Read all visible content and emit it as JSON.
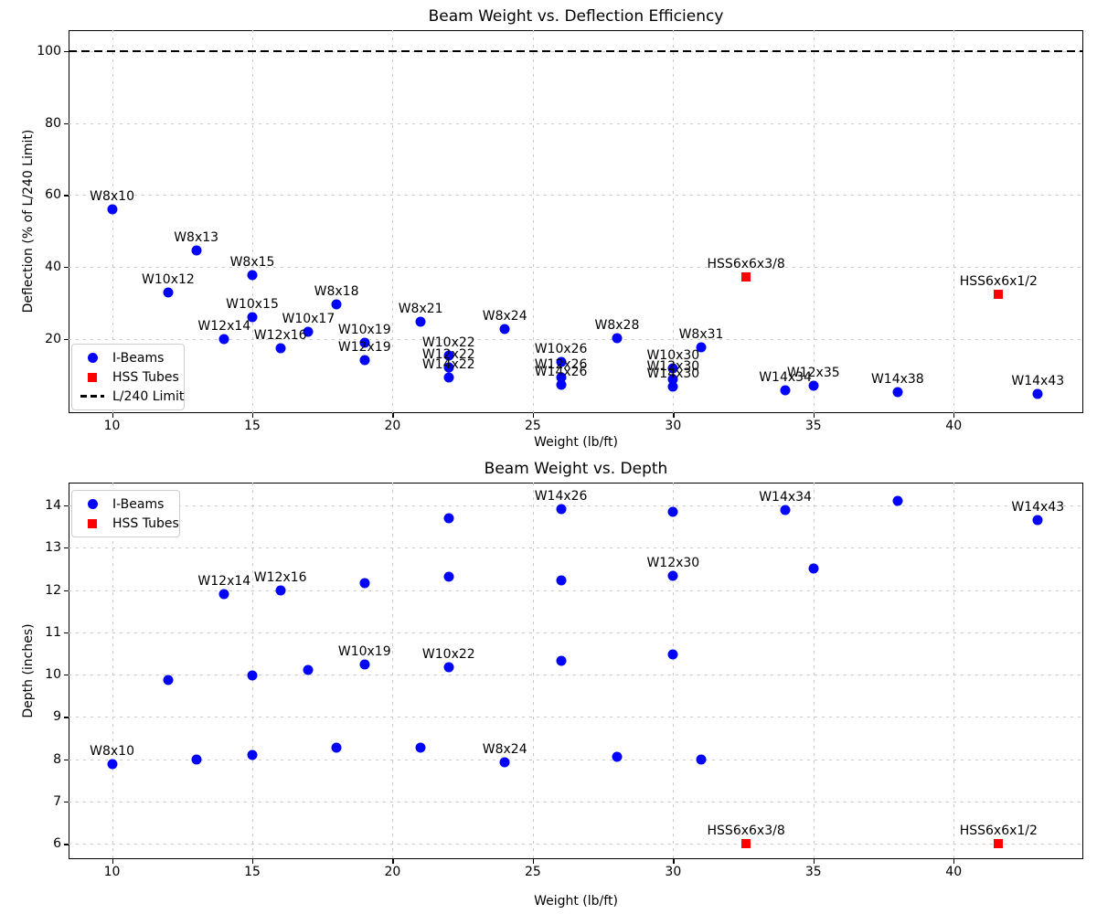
{
  "figure": {
    "background": "#ffffff",
    "ibeam_color": "#0000ff",
    "hss_color": "#ff0000",
    "grid_color": "#c9c9c9",
    "limit_color": "#000000"
  },
  "chart_data": [
    {
      "type": "scatter",
      "title": "Beam Weight vs. Deflection Efficiency",
      "xlabel": "Weight (lb/ft)",
      "ylabel": "Deflection (% of L/240 Limit)",
      "xlim": [
        8.45,
        44.62
      ],
      "ylim": [
        -0.6,
        105.8
      ],
      "x_ticks": [
        10,
        15,
        20,
        25,
        30,
        35,
        40
      ],
      "y_ticks": [
        20,
        40,
        60,
        80,
        100
      ],
      "grid": "dashed",
      "limit_line": {
        "y": 100,
        "label": "L/240 Limit",
        "color": "#000000",
        "style": "dashed"
      },
      "legend": {
        "position": "lower-left",
        "entries": [
          {
            "label": "I-Beams",
            "marker": "circle",
            "color": "#0000ff"
          },
          {
            "label": "HSS Tubes",
            "marker": "square",
            "color": "#ff0000"
          },
          {
            "label": "L/240 Limit",
            "marker": "dashed-line",
            "color": "#000000"
          }
        ]
      },
      "series": [
        {
          "name": "I-Beams",
          "marker": "circle",
          "color": "#0000ff",
          "points": [
            {
              "label": "W8x10",
              "x": 10,
              "y": 56.0,
              "annotated": true
            },
            {
              "label": "W10x12",
              "x": 12,
              "y": 32.8,
              "annotated": true
            },
            {
              "label": "W8x13",
              "x": 13,
              "y": 44.7,
              "annotated": true
            },
            {
              "label": "W12x14",
              "x": 14,
              "y": 20.0,
              "annotated": true
            },
            {
              "label": "W8x15",
              "x": 15,
              "y": 37.7,
              "annotated": true
            },
            {
              "label": "W10x15",
              "x": 15,
              "y": 26.1,
              "annotated": true
            },
            {
              "label": "W12x16",
              "x": 16,
              "y": 17.4,
              "annotated": true
            },
            {
              "label": "W10x17",
              "x": 17,
              "y": 22.1,
              "annotated": true
            },
            {
              "label": "W8x18",
              "x": 18,
              "y": 29.6,
              "annotated": true
            },
            {
              "label": "W10x19",
              "x": 19,
              "y": 19.0,
              "annotated": true
            },
            {
              "label": "W12x19",
              "x": 19,
              "y": 14.2,
              "annotated": true
            },
            {
              "label": "W8x21",
              "x": 21,
              "y": 24.9,
              "annotated": true
            },
            {
              "label": "W10x22",
              "x": 22,
              "y": 15.5,
              "annotated": true
            },
            {
              "label": "W12x22",
              "x": 22,
              "y": 12.2,
              "annotated": true
            },
            {
              "label": "W14x22",
              "x": 22,
              "y": 9.4,
              "annotated": true
            },
            {
              "label": "W8x24",
              "x": 24,
              "y": 22.8,
              "annotated": true
            },
            {
              "label": "W10x26",
              "x": 26,
              "y": 13.5,
              "annotated": true
            },
            {
              "label": "W12x26",
              "x": 26,
              "y": 9.2,
              "annotated": true
            },
            {
              "label": "W14x26",
              "x": 26,
              "y": 7.3,
              "annotated": true
            },
            {
              "label": "W8x28",
              "x": 28,
              "y": 20.1,
              "annotated": true
            },
            {
              "label": "W10x30",
              "x": 30,
              "y": 11.8,
              "annotated": true
            },
            {
              "label": "W12x30",
              "x": 30,
              "y": 8.9,
              "annotated": true
            },
            {
              "label": "W14x30",
              "x": 30,
              "y": 6.8,
              "annotated": true
            },
            {
              "label": "W8x31",
              "x": 31,
              "y": 17.8,
              "annotated": true
            },
            {
              "label": "W14x34",
              "x": 34,
              "y": 5.8,
              "annotated": true
            },
            {
              "label": "W12x35",
              "x": 35,
              "y": 6.9,
              "annotated": true
            },
            {
              "label": "W14x38",
              "x": 38,
              "y": 5.3,
              "annotated": true
            },
            {
              "label": "W14x43",
              "x": 43,
              "y": 4.8,
              "annotated": true
            }
          ]
        },
        {
          "name": "HSS Tubes",
          "marker": "square",
          "color": "#ff0000",
          "points": [
            {
              "label": "HSS6x6x3/8",
              "x": 32.6,
              "y": 37.2,
              "annotated": true
            },
            {
              "label": "HSS6x6x1/2",
              "x": 41.6,
              "y": 32.5,
              "annotated": true
            }
          ]
        }
      ]
    },
    {
      "type": "scatter",
      "title": "Beam Weight vs. Depth",
      "xlabel": "Weight (lb/ft)",
      "ylabel": "Depth (inches)",
      "xlim": [
        8.45,
        44.62
      ],
      "ylim": [
        5.64,
        14.54
      ],
      "x_ticks": [
        10,
        15,
        20,
        25,
        30,
        35,
        40
      ],
      "y_ticks": [
        6,
        7,
        8,
        9,
        10,
        11,
        12,
        13,
        14
      ],
      "grid": "dashed",
      "limit_line": null,
      "legend": {
        "position": "upper-left",
        "entries": [
          {
            "label": "I-Beams",
            "marker": "circle",
            "color": "#0000ff"
          },
          {
            "label": "HSS Tubes",
            "marker": "square",
            "color": "#ff0000"
          }
        ]
      },
      "series": [
        {
          "name": "I-Beams",
          "marker": "circle",
          "color": "#0000ff",
          "points": [
            {
              "label": "W8x10",
              "x": 10,
              "y": 7.89,
              "annotated": true
            },
            {
              "label": "W10x12",
              "x": 12,
              "y": 9.87,
              "annotated": false
            },
            {
              "label": "W8x13",
              "x": 13,
              "y": 7.99,
              "annotated": false
            },
            {
              "label": "W12x14",
              "x": 14,
              "y": 11.91,
              "annotated": true
            },
            {
              "label": "W8x15",
              "x": 15,
              "y": 8.11,
              "annotated": false
            },
            {
              "label": "W10x15",
              "x": 15,
              "y": 9.99,
              "annotated": false
            },
            {
              "label": "W12x16",
              "x": 16,
              "y": 11.99,
              "annotated": true
            },
            {
              "label": "W10x17",
              "x": 17,
              "y": 10.11,
              "annotated": false
            },
            {
              "label": "W8x18",
              "x": 18,
              "y": 8.28,
              "annotated": false
            },
            {
              "label": "W10x19",
              "x": 19,
              "y": 10.24,
              "annotated": true
            },
            {
              "label": "W12x19",
              "x": 19,
              "y": 12.16,
              "annotated": false
            },
            {
              "label": "W8x21",
              "x": 21,
              "y": 8.28,
              "annotated": false
            },
            {
              "label": "W10x22",
              "x": 22,
              "y": 10.17,
              "annotated": true
            },
            {
              "label": "W12x22",
              "x": 22,
              "y": 12.31,
              "annotated": false
            },
            {
              "label": "W14x22",
              "x": 22,
              "y": 13.7,
              "annotated": false
            },
            {
              "label": "W8x24",
              "x": 24,
              "y": 7.93,
              "annotated": true
            },
            {
              "label": "W10x26",
              "x": 26,
              "y": 10.33,
              "annotated": false
            },
            {
              "label": "W12x26",
              "x": 26,
              "y": 12.22,
              "annotated": false
            },
            {
              "label": "W14x26",
              "x": 26,
              "y": 13.91,
              "annotated": true
            },
            {
              "label": "W8x28",
              "x": 28,
              "y": 8.06,
              "annotated": false
            },
            {
              "label": "W10x30",
              "x": 30,
              "y": 10.47,
              "annotated": false
            },
            {
              "label": "W12x30",
              "x": 30,
              "y": 12.34,
              "annotated": true
            },
            {
              "label": "W14x30",
              "x": 30,
              "y": 13.84,
              "annotated": false
            },
            {
              "label": "W8x31",
              "x": 31,
              "y": 8.0,
              "annotated": false
            },
            {
              "label": "W14x34",
              "x": 34,
              "y": 13.9,
              "annotated": true
            },
            {
              "label": "W12x35",
              "x": 35,
              "y": 12.5,
              "annotated": false
            },
            {
              "label": "W14x38",
              "x": 38,
              "y": 14.1,
              "annotated": false
            },
            {
              "label": "W14x43",
              "x": 43,
              "y": 13.66,
              "annotated": true
            }
          ]
        },
        {
          "name": "HSS Tubes",
          "marker": "square",
          "color": "#ff0000",
          "points": [
            {
              "label": "HSS6x6x3/8",
              "x": 32.6,
              "y": 6.0,
              "annotated": true
            },
            {
              "label": "HSS6x6x1/2",
              "x": 41.6,
              "y": 6.0,
              "annotated": true
            }
          ]
        }
      ]
    }
  ]
}
